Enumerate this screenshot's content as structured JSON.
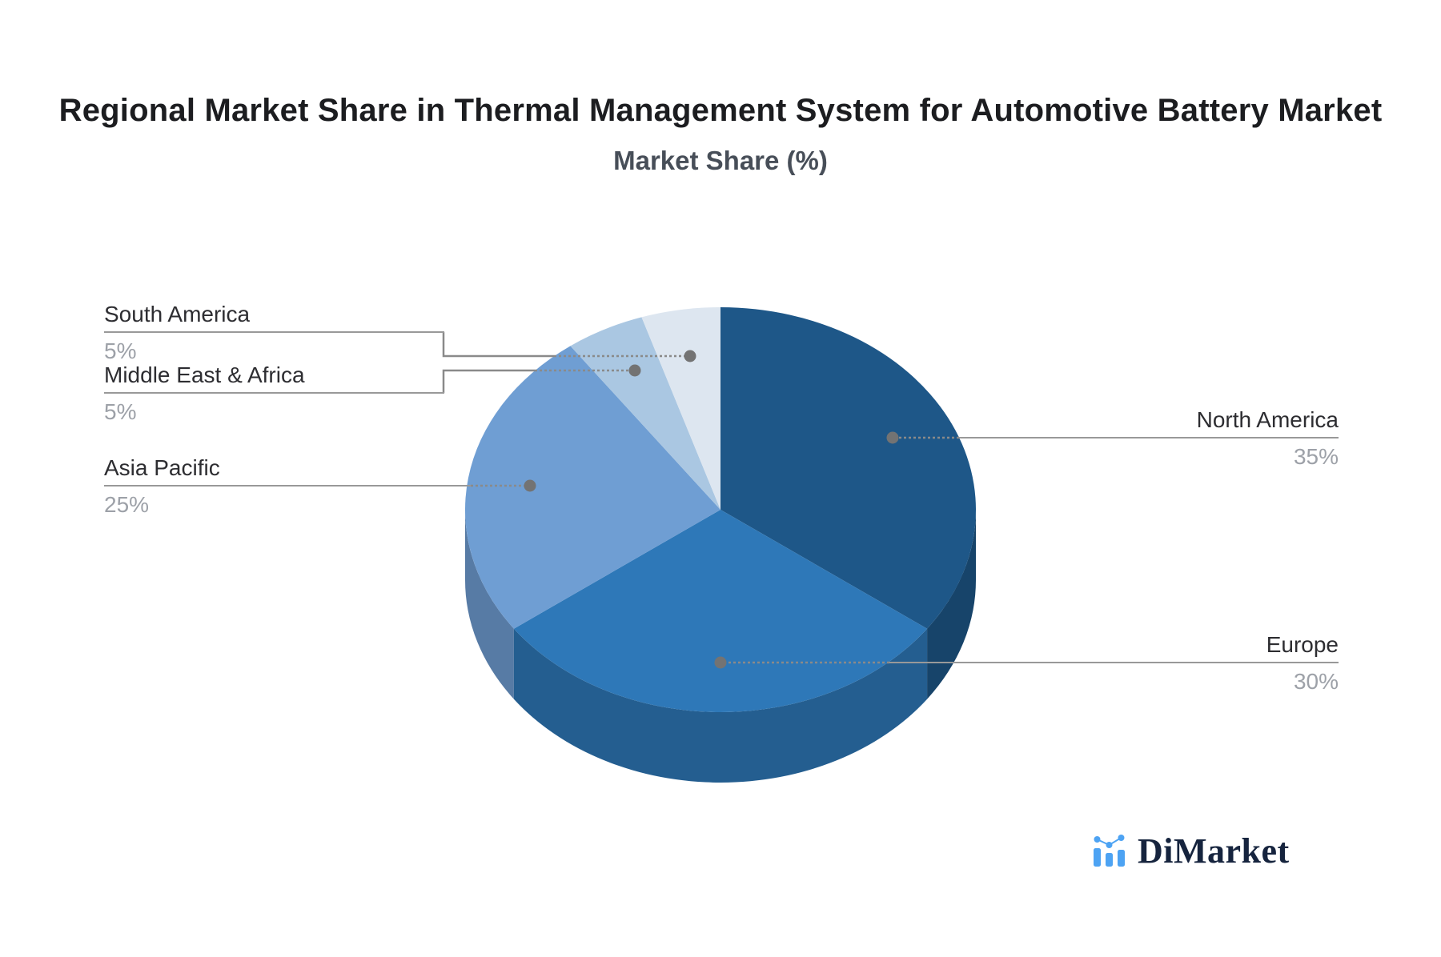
{
  "header": {
    "title": "Regional Market Share in Thermal Management System for Automotive Battery Market",
    "subtitle": "Market Share (%)"
  },
  "chart_data": {
    "type": "pie",
    "title": "Regional Market Share in Thermal Management System for Automotive Battery Market",
    "subtitle": "Market Share (%)",
    "unit": "%",
    "start_angle_deg": 0,
    "direction": "clockwise",
    "effect_3d": true,
    "legend_position": "callout-labels",
    "slices": [
      {
        "label": "North America",
        "value": 35,
        "display": "35%",
        "color": "#1e5788",
        "label_side": "right"
      },
      {
        "label": "Europe",
        "value": 30,
        "display": "30%",
        "color": "#2e78b8",
        "label_side": "right"
      },
      {
        "label": "Asia Pacific",
        "value": 25,
        "display": "25%",
        "color": "#6f9ed3",
        "label_side": "left"
      },
      {
        "label": "Middle East & Africa",
        "value": 5,
        "display": "5%",
        "color": "#aac7e2",
        "label_side": "left"
      },
      {
        "label": "South America",
        "value": 5,
        "display": "5%",
        "color": "#dde6f0",
        "label_side": "left"
      }
    ]
  },
  "branding": {
    "logo_text": "DiMarket",
    "logo_icon": "bar-line-chart-icon",
    "logo_text_color": "#16243e",
    "logo_icon_color": "#4da3f3"
  },
  "style": {
    "background": "#ffffff",
    "leader_line_color": "#8a8a8a",
    "leader_dot_color": "#737373",
    "label_text_color": "#2d2d31",
    "percent_text_color": "#9da1a8",
    "title_color": "#1c1d20",
    "subtitle_color": "#474e58"
  }
}
